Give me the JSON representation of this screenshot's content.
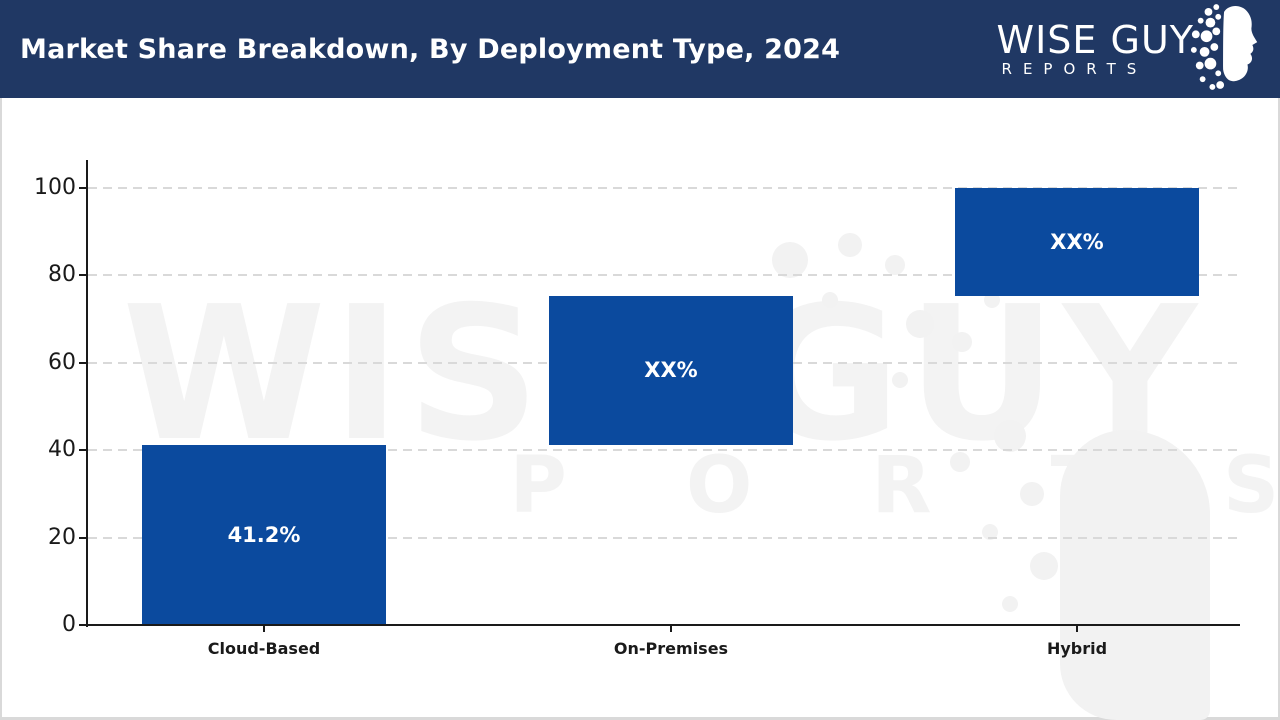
{
  "header": {
    "title": "Market Share Breakdown, By Deployment Type, 2024",
    "background_color": "#203864",
    "logo": {
      "line1": "WISE GUY",
      "line2": "REPORTS"
    }
  },
  "watermark": {
    "line1": "WISE GUY",
    "line2": "R E P O R T S"
  },
  "chart_data": {
    "type": "bar",
    "subtype": "floating-waterfall",
    "title": "Market Share Breakdown, By Deployment Type, 2024",
    "categories": [
      "Cloud-Based",
      "On-Premises",
      "Hybrid"
    ],
    "segments": [
      {
        "category": "Cloud-Based",
        "start": 0,
        "end": 41.2,
        "label": "41.2%"
      },
      {
        "category": "On-Premises",
        "start": 41.2,
        "end": 75.3,
        "label": "XX%"
      },
      {
        "category": "Hybrid",
        "start": 75.3,
        "end": 100,
        "label": "XX%"
      }
    ],
    "bar_color": "#0b4a9e",
    "bar_label_color": "#ffffff",
    "xlabel": "",
    "ylabel": "",
    "yticks": [
      0,
      20,
      40,
      60,
      80,
      100
    ],
    "ylim": [
      0,
      106
    ],
    "grid": "horizontal dashed",
    "legend": "none"
  }
}
